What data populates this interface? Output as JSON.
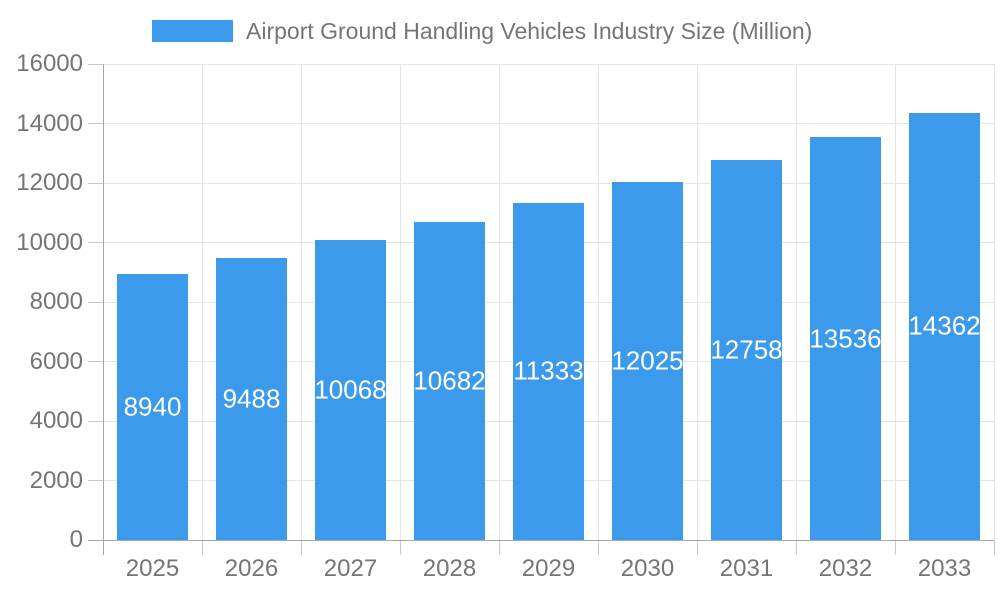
{
  "legend": {
    "label": "Airport Ground Handling Vehicles Industry Size (Million)"
  },
  "chart_data": {
    "type": "bar",
    "title": "Airport Ground Handling Vehicles Industry Size (Million)",
    "categories": [
      "2025",
      "2026",
      "2027",
      "2028",
      "2029",
      "2030",
      "2031",
      "2032",
      "2033"
    ],
    "values": [
      8940,
      9488,
      10068,
      10682,
      11333,
      12025,
      12758,
      13536,
      14362
    ],
    "value_labels": [
      "8940",
      "9488",
      "10068",
      "10682",
      "11333",
      "12025",
      "12758",
      "13536",
      "14362"
    ],
    "xlabel": "",
    "ylabel": "",
    "ylim": [
      0,
      16000
    ],
    "yticks": [
      0,
      2000,
      4000,
      6000,
      8000,
      10000,
      12000,
      14000,
      16000
    ],
    "ytick_labels": [
      "0",
      "2000",
      "4000",
      "6000",
      "8000",
      "10000",
      "12000",
      "14000",
      "16000"
    ],
    "grid": true,
    "legend_position": "top",
    "value_label_position": "inside-center",
    "colors": {
      "bar": "#3c9aec",
      "value_label": "#ffffff",
      "axis_line": "#a7a7a7",
      "tick": "#c8c8c8",
      "gridline": "#e4e4e4",
      "axis_text": "#757575",
      "legend_text": "#757575",
      "background": "#ffffff"
    }
  }
}
